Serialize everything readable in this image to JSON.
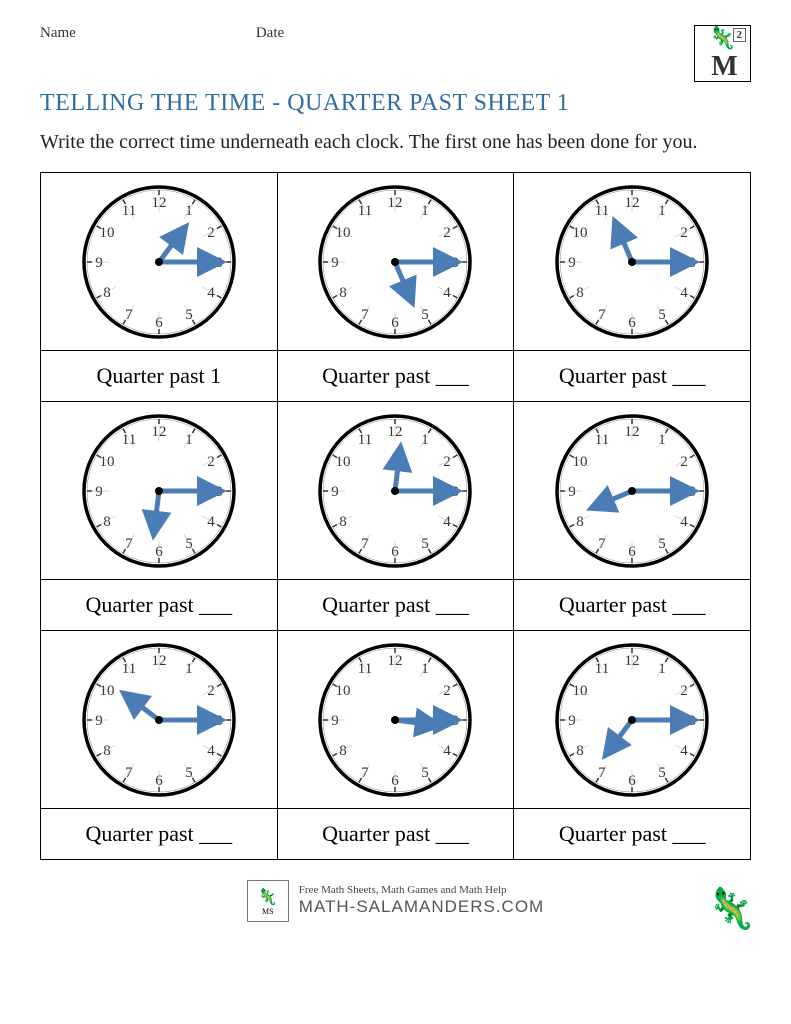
{
  "header": {
    "name_label": "Name",
    "date_label": "Date",
    "grade_badge": "2"
  },
  "title": {
    "text": "TELLING THE TIME - QUARTER PAST SHEET 1",
    "color": "#2e6ca4"
  },
  "instructions": "Write the correct time underneath each clock. The first one has been done for you.",
  "clock_style": {
    "face_radius": 75,
    "stroke_color": "#000000",
    "stroke_width": 3.5,
    "number_font_size": 15,
    "number_color": "#333333",
    "tick_color": "#333333",
    "hand_color": "#4a7db5",
    "hour_hand_length": 40,
    "minute_hand_length": 58,
    "hand_width": 5
  },
  "clocks": [
    {
      "hour_hand_angle": 37,
      "minute_hand_angle": 90,
      "answer": "Quarter past 1"
    },
    {
      "hour_hand_angle": 157,
      "minute_hand_angle": 90,
      "answer": "Quarter past ___"
    },
    {
      "hour_hand_angle": 337,
      "minute_hand_angle": 90,
      "answer": "Quarter past ___"
    },
    {
      "hour_hand_angle": 187,
      "minute_hand_angle": 90,
      "answer": "Quarter past ___"
    },
    {
      "hour_hand_angle": 7,
      "minute_hand_angle": 90,
      "answer": "Quarter past ___"
    },
    {
      "hour_hand_angle": 247,
      "minute_hand_angle": 90,
      "answer": "Quarter past ___"
    },
    {
      "hour_hand_angle": 307,
      "minute_hand_angle": 90,
      "answer": "Quarter past ___"
    },
    {
      "hour_hand_angle": 97,
      "minute_hand_angle": 90,
      "answer": "Quarter past ___"
    },
    {
      "hour_hand_angle": 217,
      "minute_hand_angle": 90,
      "answer": "Quarter past ___"
    }
  ],
  "footer": {
    "tagline": "Free Math Sheets, Math Games and Math Help",
    "site": "MATH-SALAMANDERS.COM"
  }
}
